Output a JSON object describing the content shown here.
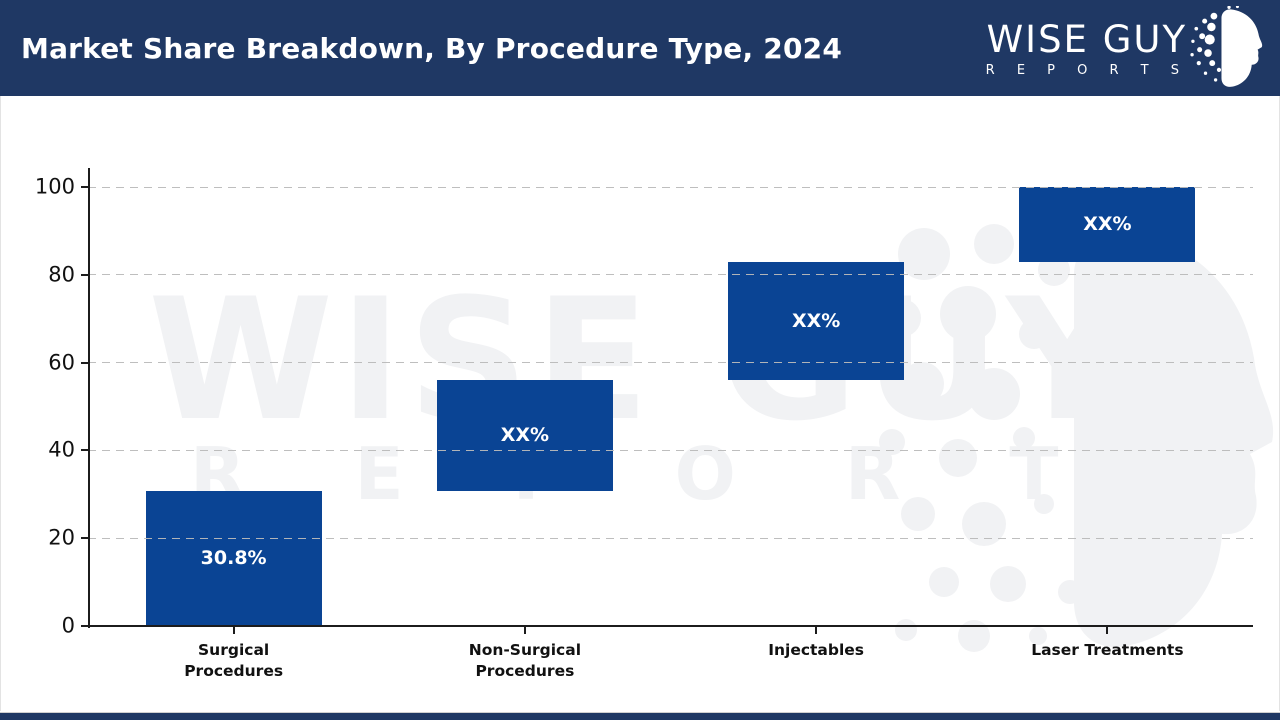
{
  "header": {
    "title": "Market Share Breakdown, By Procedure Type, 2024",
    "logo": {
      "name_line": "WISE GUY",
      "sub_line": "R E P O R T S"
    }
  },
  "watermark": {
    "name_line": "WISE GUY",
    "sub_line": "R E P O R T S"
  },
  "colors": {
    "header_bg": "#1f3864",
    "footer_bg": "#1f3864",
    "bar": "#0a4494",
    "bar_label": "#ffffff",
    "grid": "rgba(186,186,186,0.95)",
    "axis": "#1c1c1c",
    "watermark": "#f1f2f4"
  },
  "chart_data": {
    "type": "bar",
    "subtype": "waterfall",
    "title": "Market Share Breakdown, By Procedure Type, 2024",
    "categories": [
      "Surgical Procedures",
      "Non-Surgical Procedures",
      "Injectables",
      "Laser Treatments"
    ],
    "category_lines": [
      [
        "Surgical",
        "Procedures"
      ],
      [
        "Non-Surgical",
        "Procedures"
      ],
      [
        "Injectables"
      ],
      [
        "Laser Treatments"
      ]
    ],
    "bars": [
      {
        "category": "Surgical Procedures",
        "start": 0,
        "end": 30.8,
        "label": "30.8%"
      },
      {
        "category": "Non-Surgical Procedures",
        "start": 30.8,
        "end": 56,
        "label": "XX%"
      },
      {
        "category": "Injectables",
        "start": 56,
        "end": 83,
        "label": "XX%"
      },
      {
        "category": "Laser Treatments",
        "start": 83,
        "end": 100,
        "label": "XX%"
      }
    ],
    "ylim": [
      0,
      100
    ],
    "yticks": [
      0,
      20,
      40,
      60,
      80,
      100
    ],
    "xlabel": "",
    "ylabel": "",
    "grid": "horizontal-dashed",
    "legend": "none"
  }
}
